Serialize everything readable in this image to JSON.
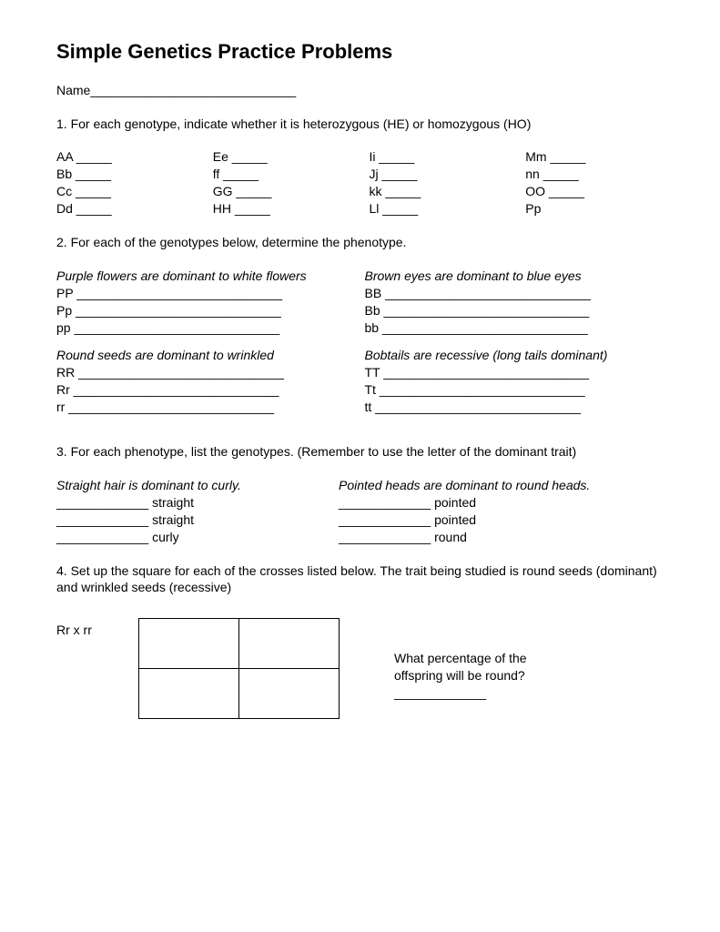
{
  "title": "Simple Genetics Practice Problems",
  "name_label": "Name_____________________________",
  "q1": {
    "prompt": "1. For each genotype, indicate whether it is heterozygous (HE) or homozygous (HO)",
    "col1": [
      "AA _____",
      "Bb _____",
      "Cc _____",
      "Dd _____"
    ],
    "col2": [
      "Ee _____",
      "ff _____",
      "GG _____",
      "HH _____"
    ],
    "col3": [
      "Ii _____",
      "Jj _____",
      "kk _____",
      "Ll _____"
    ],
    "col4": [
      "Mm _____",
      "nn _____",
      "OO _____",
      "Pp"
    ]
  },
  "q2": {
    "prompt": "2. For each of the genotypes below, determine the phenotype.",
    "blocks": [
      {
        "trait": "Purple flowers are dominant to white flowers",
        "lines": [
          "PP _____________________________",
          "Pp _____________________________",
          "pp _____________________________"
        ]
      },
      {
        "trait": "Brown eyes are dominant to blue eyes",
        "lines": [
          "BB _____________________________",
          "Bb _____________________________",
          "bb _____________________________"
        ]
      },
      {
        "trait": "Round seeds are dominant to wrinkled",
        "lines": [
          "RR _____________________________",
          "Rr _____________________________",
          "rr _____________________________"
        ]
      },
      {
        "trait": "Bobtails are recessive (long tails dominant)",
        "lines": [
          "TT _____________________________",
          "Tt _____________________________",
          "tt _____________________________"
        ]
      }
    ]
  },
  "q3": {
    "prompt": "3. For each phenotype, list the genotypes. (Remember to use the letter of the dominant trait)",
    "left": {
      "trait": "Straight hair is dominant to curly.",
      "lines": [
        "_____________ straight",
        "_____________ straight",
        "_____________ curly"
      ]
    },
    "right": {
      "trait": "Pointed heads are dominant to round heads.",
      "lines": [
        "_____________ pointed",
        "_____________ pointed",
        "_____________ round"
      ]
    }
  },
  "q4": {
    "prompt": "4. Set up the square for each of the crosses listed below. The trait being studied is round seeds (dominant) and wrinkled seeds (recessive)",
    "cross": "Rr x rr",
    "question": "What percentage of the offspring will be round? _____________"
  }
}
